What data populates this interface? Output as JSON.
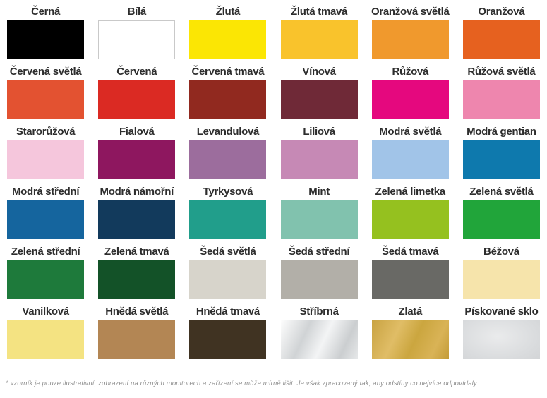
{
  "chart_data": {
    "type": "table",
    "title": "",
    "rows": 6,
    "cols": 6,
    "cells": [
      {
        "label": "Černá",
        "color": "#000000"
      },
      {
        "label": "Bílá",
        "color": "#ffffff",
        "border": "#c9c9c9"
      },
      {
        "label": "Žlutá",
        "color": "#fbe604"
      },
      {
        "label": "Žlutá tmavá",
        "color": "#f9c32c"
      },
      {
        "label": "Oranžová světlá",
        "color": "#f0992d"
      },
      {
        "label": "Oranžová",
        "color": "#e6611f"
      },
      {
        "label": "Červená světlá",
        "color": "#e35231"
      },
      {
        "label": "Červená",
        "color": "#db2a23"
      },
      {
        "label": "Červená tmavá",
        "color": "#91291f"
      },
      {
        "label": "Vínová",
        "color": "#6f2937"
      },
      {
        "label": "Růžová",
        "color": "#e5087e"
      },
      {
        "label": "Růžová světlá",
        "color": "#ee86ae"
      },
      {
        "label": "Starorůžová",
        "color": "#f5c6dc"
      },
      {
        "label": "Fialová",
        "color": "#8e175f"
      },
      {
        "label": "Levandulová",
        "color": "#9c6d9d"
      },
      {
        "label": "Liliová",
        "color": "#c689b5"
      },
      {
        "label": "Modrá světlá",
        "color": "#a1c4e8"
      },
      {
        "label": "Modrá gentian",
        "color": "#0e79ad"
      },
      {
        "label": "Modrá střední",
        "color": "#15659e"
      },
      {
        "label": "Modrá námořní",
        "color": "#123a5c"
      },
      {
        "label": "Tyrkysová",
        "color": "#219e8b"
      },
      {
        "label": "Mint",
        "color": "#81c2ae"
      },
      {
        "label": "Zelená limetka",
        "color": "#95c11f"
      },
      {
        "label": "Zelená světlá",
        "color": "#21a53a"
      },
      {
        "label": "Zelená střední",
        "color": "#1e7a3b"
      },
      {
        "label": "Zelená tmavá",
        "color": "#135228"
      },
      {
        "label": "Šedá světlá",
        "color": "#d7d4cb"
      },
      {
        "label": "Šedá střední",
        "color": "#b2afa8"
      },
      {
        "label": "Šedá tmavá",
        "color": "#696965"
      },
      {
        "label": "Béžová",
        "color": "#f6e4ab"
      },
      {
        "label": "Vanilková",
        "color": "#f4e382"
      },
      {
        "label": "Hnědá světlá",
        "color": "#b38654"
      },
      {
        "label": "Hnědá tmavá",
        "color": "#403322"
      },
      {
        "label": "Stříbrná",
        "effect": "silver",
        "colors": [
          "#fdfdfd",
          "#d0d3d5",
          "#f3f4f5",
          "#cbced0",
          "#e6e8e9"
        ]
      },
      {
        "label": "Zlatá",
        "effect": "gold",
        "colors": [
          "#c9a342",
          "#e0bd66",
          "#cba63f",
          "#d9b356",
          "#c39b37"
        ]
      },
      {
        "label": "Pískované sklo",
        "effect": "glass",
        "colors": [
          "#eaebec",
          "#d9dbdd",
          "#cfd1d3"
        ]
      }
    ]
  },
  "footnote": "* vzorník je pouze ilustrativní, zobrazení na různých monitorech a zařízení se může mírně lišit. Je však zpracovaný tak, aby odstíny co nejvíce odpovídaly."
}
